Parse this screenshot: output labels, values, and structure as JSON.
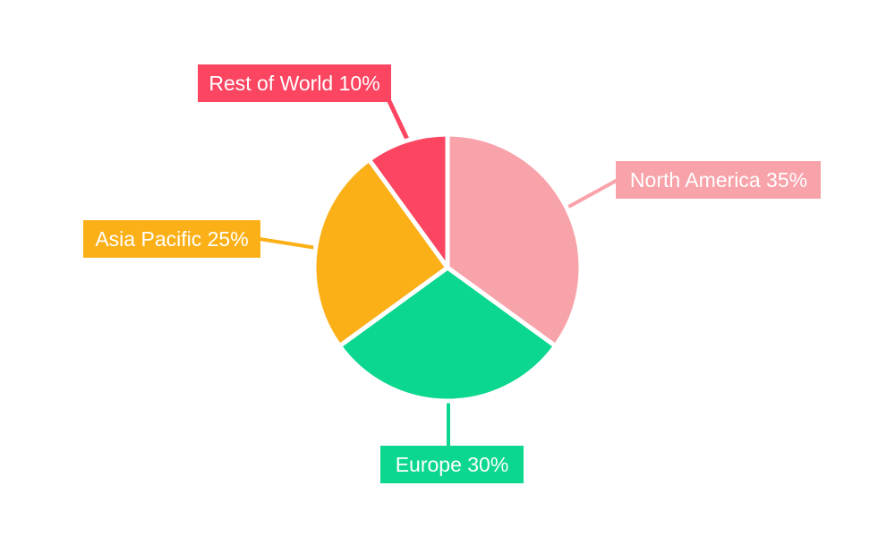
{
  "page": {
    "background_color": "#FFFFFF"
  },
  "chart_data": {
    "type": "pie",
    "categories": [
      "North America",
      "Europe",
      "Asia Pacific",
      "Rest of World"
    ],
    "values": [
      35,
      30,
      25,
      10
    ],
    "unit": "%",
    "colors": [
      "#F8A2A9",
      "#0BD78E",
      "#FBB018",
      "#FB4561"
    ],
    "callout_labels": [
      "North America 35%",
      "Europe 30%",
      "Asia Pacific 25%",
      "Rest of World 10%"
    ],
    "label_text_color": "#FFFFFF",
    "slice_border_color": "#FFFFFF",
    "start_angle": "top",
    "direction": "clockwise",
    "legend_position": "external-callouts",
    "grid": false
  }
}
